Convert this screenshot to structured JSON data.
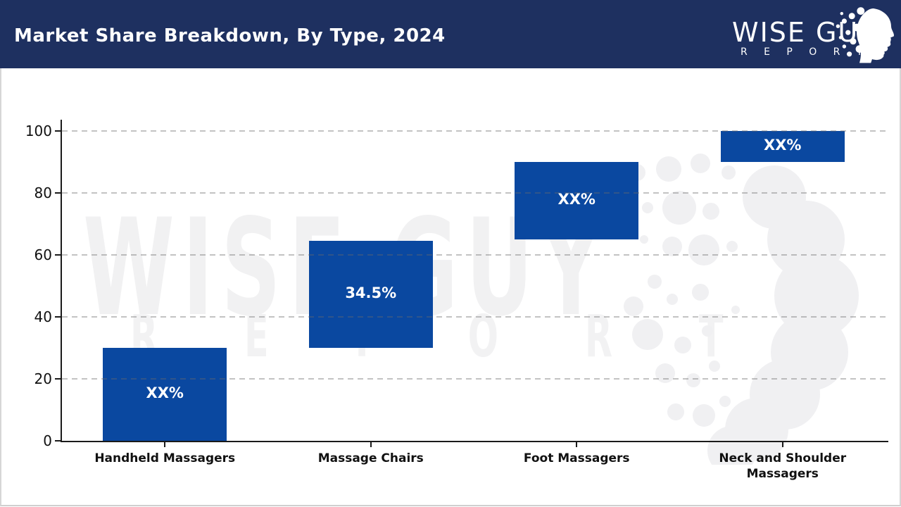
{
  "header": {
    "title": "Market Share Breakdown, By Type, 2024",
    "bg_color": "#1e3060",
    "logo": {
      "line1": "WISE GUY",
      "line2": "REPORTS"
    }
  },
  "watermark": {
    "line1": "WISE GUY",
    "line2": "REPORTS"
  },
  "chart_data": {
    "type": "bar",
    "subtype": "floating-waterfall",
    "title": "Market Share Breakdown, By Type, 2024",
    "categories": [
      "Handheld Massagers",
      "Massage Chairs",
      "Foot Massagers",
      "Neck and Shoulder Massagers"
    ],
    "bars": [
      {
        "category": "Handheld Massagers",
        "start": 0,
        "end": 30,
        "label": "XX%"
      },
      {
        "category": "Massage Chairs",
        "start": 30,
        "end": 64.5,
        "label": "34.5%"
      },
      {
        "category": "Foot Massagers",
        "start": 65,
        "end": 90,
        "label": "XX%"
      },
      {
        "category": "Neck and Shoulder Massagers",
        "start": 90,
        "end": 100,
        "label": "XX%"
      }
    ],
    "xlabel": "",
    "ylabel": "",
    "yticks": [
      0,
      20,
      40,
      60,
      80,
      100
    ],
    "ylim": [
      0,
      104
    ],
    "grid": "horizontal-dashed",
    "legend": null,
    "bar_color": "#0a48a0",
    "bar_label_color": "#ffffff",
    "axis_color": "#1a1a1a"
  }
}
